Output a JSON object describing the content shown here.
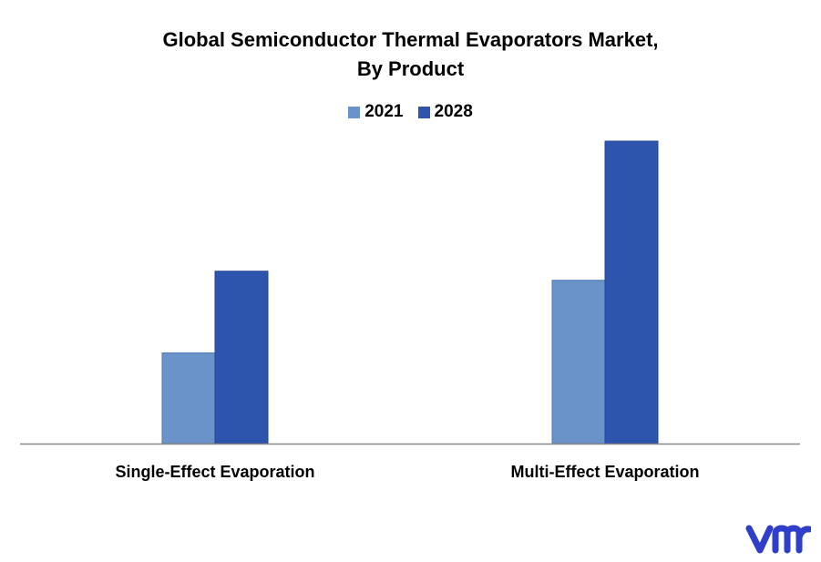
{
  "colors": {
    "series_2021": "#6a93c9",
    "series_2028": "#2e55ad",
    "axis": "#8a8a8a",
    "logo": "#2f3fc9"
  },
  "brand": {
    "icon": "vmr-logo-icon"
  },
  "chart_data": {
    "type": "bar",
    "title": "Global Semiconductor Thermal Evaporators Market, By Product",
    "title_lines": [
      "Global Semiconductor Thermal Evaporators Market,",
      "By Product"
    ],
    "categories": [
      "Single-Effect Evaporation",
      "Multi-Effect Evaporation"
    ],
    "series": [
      {
        "name": "2021",
        "values": [
          30,
          54
        ]
      },
      {
        "name": "2028",
        "values": [
          57,
          100
        ]
      }
    ],
    "ylim": [
      0,
      100
    ],
    "xlabel": "",
    "ylabel": "",
    "grid": false,
    "legend_position": "top-center",
    "y_axis_visible": false
  }
}
